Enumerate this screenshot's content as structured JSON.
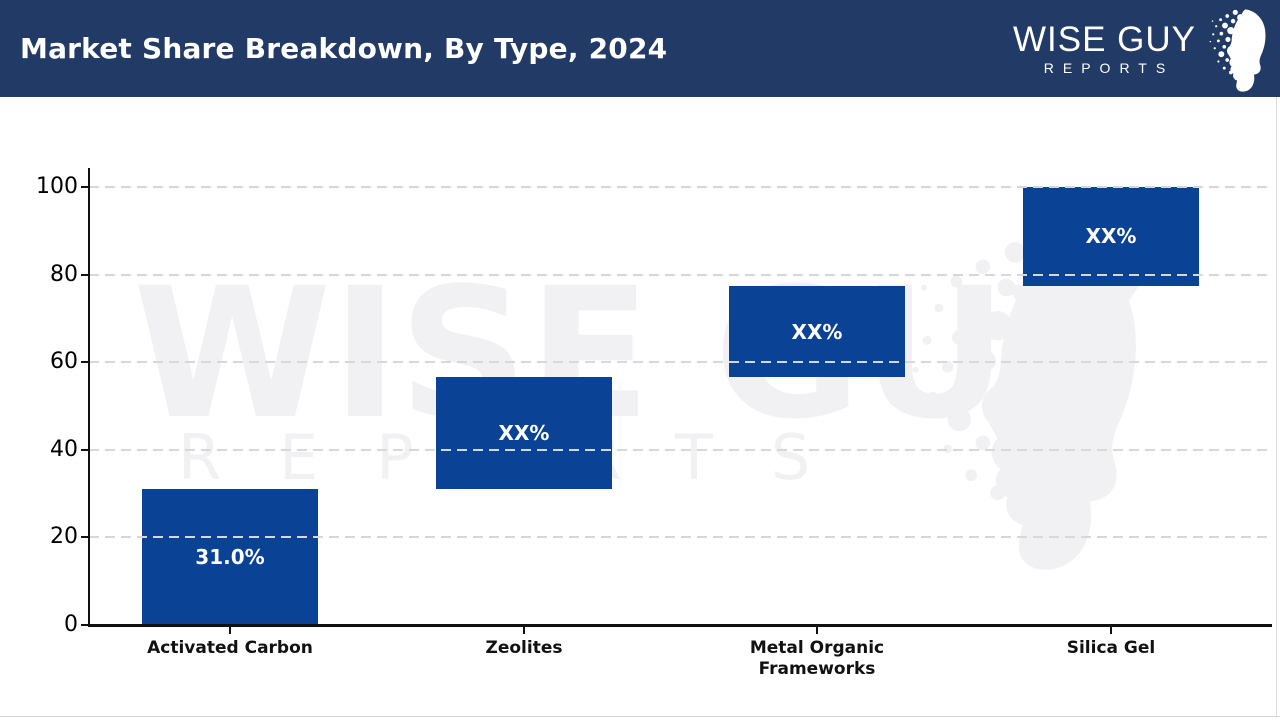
{
  "header": {
    "title": "Market Share Breakdown, By Type, 2024",
    "logo": {
      "line1": "WISE GUY",
      "line2": "REPORTS"
    }
  },
  "watermark": {
    "line1": "WISE GUY",
    "line2": "REPORTS"
  },
  "chart_data": {
    "type": "bar",
    "subtype": "waterfall",
    "title": "Market Share Breakdown, By Type, 2024",
    "categories": [
      "Activated Carbon",
      "Zeolites",
      "Metal Organic Frameworks",
      "Silica Gel"
    ],
    "series": [
      {
        "name": "Activated Carbon",
        "start": 0,
        "end": 31,
        "label": "31.0%"
      },
      {
        "name": "Zeolites",
        "start": 31,
        "end": 56.6,
        "label": "XX%"
      },
      {
        "name": "Metal Organic Frameworks",
        "start": 56.6,
        "end": 77.4,
        "label": "XX%"
      },
      {
        "name": "Silica Gel",
        "start": 77.4,
        "end": 100,
        "label": "XX%"
      }
    ],
    "xlabel": "",
    "ylabel": "",
    "ylim": [
      0,
      100
    ],
    "yticks": [
      0,
      20,
      40,
      60,
      80,
      100
    ],
    "grid": "horizontal dashed",
    "legend": "none",
    "bar_color": "#0a4296",
    "bar_label_color": "#ffffff"
  }
}
